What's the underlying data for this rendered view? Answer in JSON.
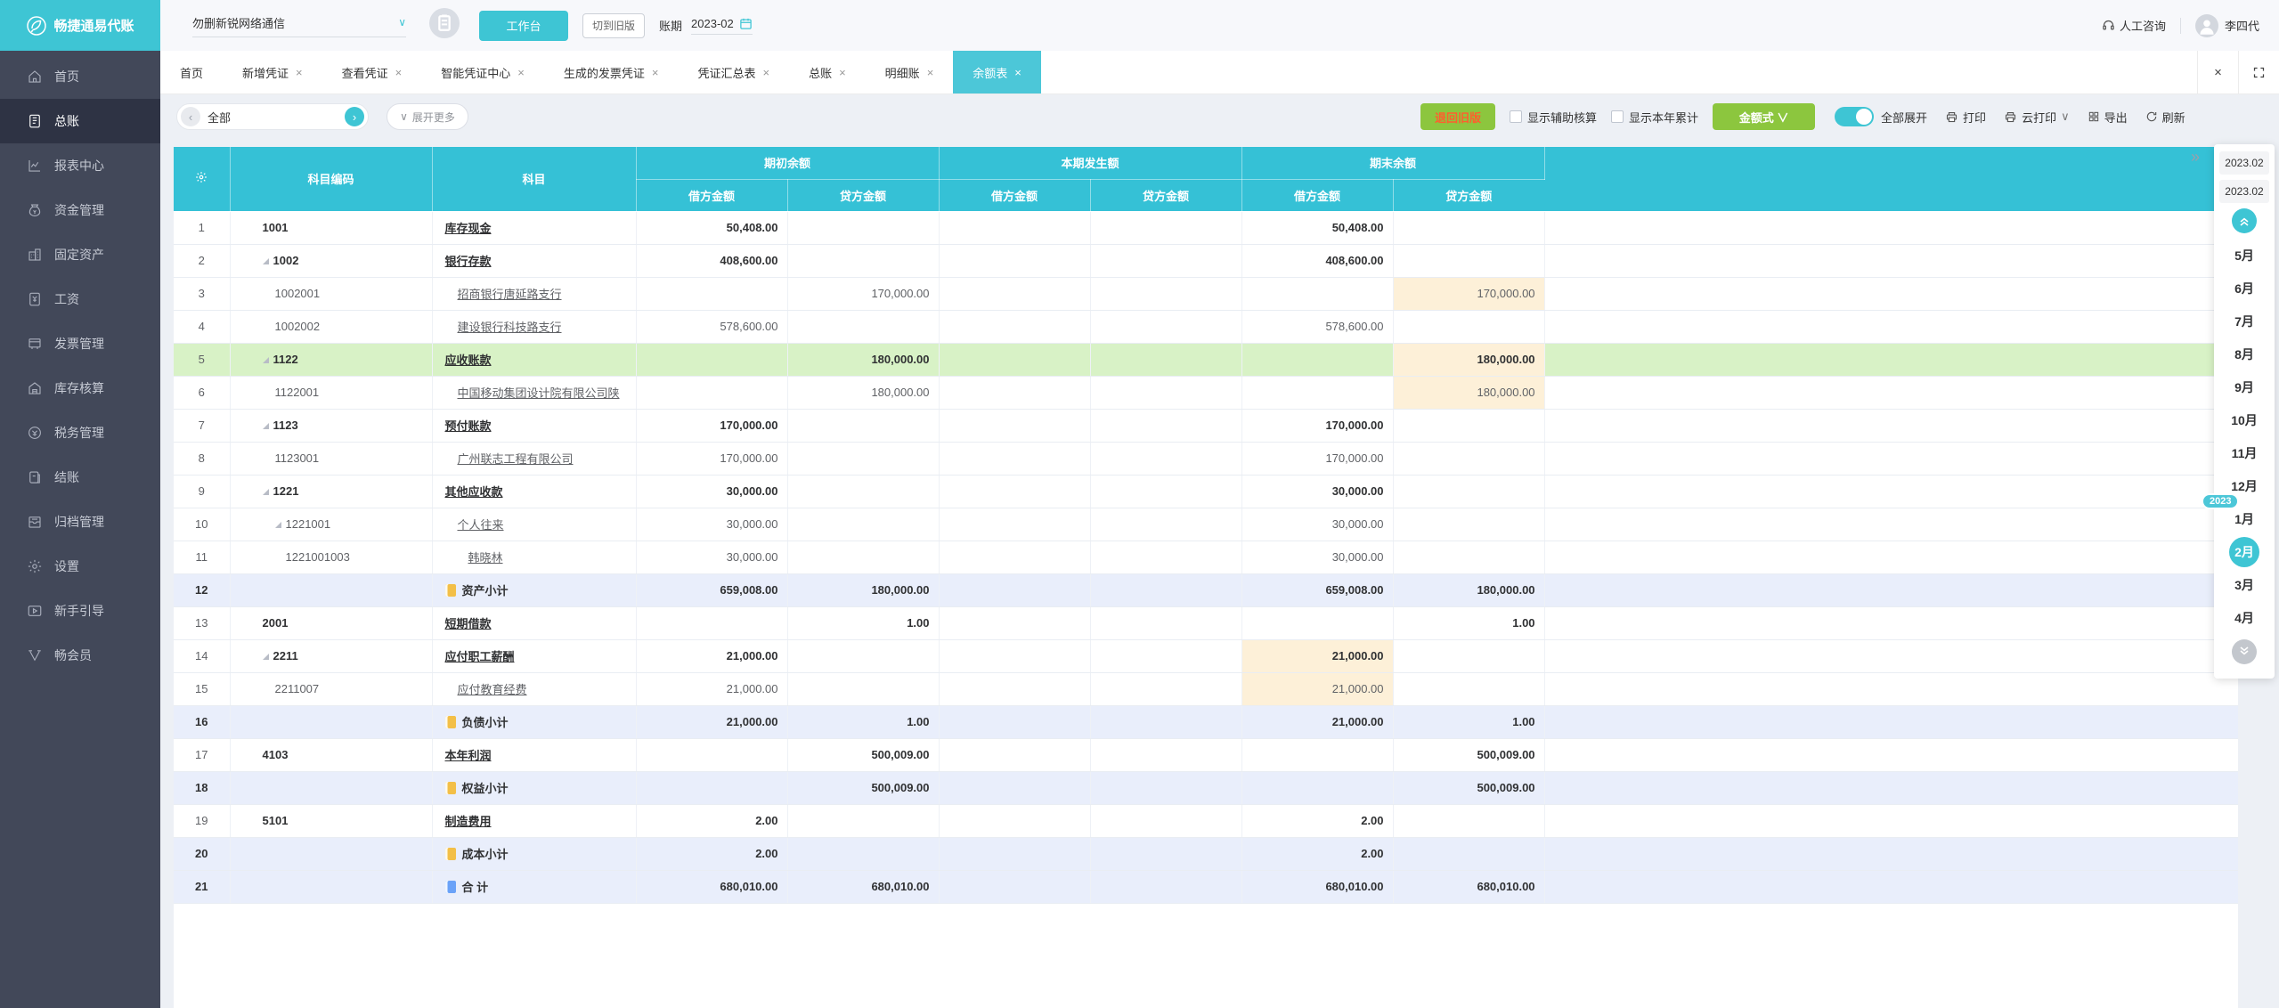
{
  "accent_color": "#3ec5d4",
  "topbar": {
    "logo_text": "畅捷通易代账",
    "company": "勿删新锐网络通信",
    "workbench_btn": "工作台",
    "switch_old_btn": "切到旧版",
    "period_label": "账期",
    "period_value": "2023-02",
    "support_label": "人工咨询",
    "user_name": "李四代"
  },
  "sidebar": {
    "items": [
      {
        "label": "首页",
        "icon": "home-icon",
        "active": false
      },
      {
        "label": "总账",
        "icon": "ledger-icon",
        "active": true
      },
      {
        "label": "报表中心",
        "icon": "report-icon",
        "active": false
      },
      {
        "label": "资金管理",
        "icon": "funds-icon",
        "active": false
      },
      {
        "label": "固定资产",
        "icon": "asset-icon",
        "active": false
      },
      {
        "label": "工资",
        "icon": "salary-icon",
        "active": false
      },
      {
        "label": "发票管理",
        "icon": "invoice-icon",
        "active": false
      },
      {
        "label": "库存核算",
        "icon": "inventory-icon",
        "active": false
      },
      {
        "label": "税务管理",
        "icon": "tax-icon",
        "active": false
      },
      {
        "label": "结账",
        "icon": "closing-icon",
        "active": false
      },
      {
        "label": "归档管理",
        "icon": "archive-icon",
        "active": false
      },
      {
        "label": "设置",
        "icon": "settings-icon",
        "active": false
      },
      {
        "label": "新手引导",
        "icon": "guide-icon",
        "active": false
      },
      {
        "label": "畅会员",
        "icon": "member-icon",
        "active": false
      }
    ]
  },
  "tabs": {
    "items": [
      {
        "label": "首页",
        "closable": false,
        "active": false
      },
      {
        "label": "新增凭证",
        "closable": true,
        "active": false
      },
      {
        "label": "查看凭证",
        "closable": true,
        "active": false
      },
      {
        "label": "智能凭证中心",
        "closable": true,
        "active": false
      },
      {
        "label": "生成的发票凭证",
        "closable": true,
        "active": false
      },
      {
        "label": "凭证汇总表",
        "closable": true,
        "active": false
      },
      {
        "label": "总账",
        "closable": true,
        "active": false
      },
      {
        "label": "明细账",
        "closable": true,
        "active": false
      },
      {
        "label": "余额表",
        "closable": true,
        "active": true
      }
    ],
    "close_all": "×"
  },
  "toolbar": {
    "filter_value": "全部",
    "expand_more": "展开更多",
    "back_old_btn": "退回旧版",
    "show_aux_label": "显示辅助核算",
    "show_ytd_label": "显示本年累计",
    "amount_style_btn": "金额式",
    "expand_all_label": "全部展开",
    "print_label": "打印",
    "cloud_print_label": "云打印",
    "export_label": "导出",
    "refresh_label": "刷新"
  },
  "table": {
    "headers": {
      "code": "科目编码",
      "subject": "科目",
      "group_opening": "期初余额",
      "group_current": "本期发生额",
      "group_ending": "期末余额",
      "debit": "借方金额",
      "credit": "贷方金额"
    },
    "rows": [
      {
        "num": "1",
        "code": "1001",
        "name": "库存现金",
        "level": 1,
        "expandable": false,
        "bold": true,
        "row_type": "normal",
        "selected": false,
        "highlight": [],
        "cells": [
          "50,408.00",
          "",
          "",
          "",
          "50,408.00",
          ""
        ]
      },
      {
        "num": "2",
        "code": "1002",
        "name": "银行存款",
        "level": 1,
        "expandable": true,
        "bold": true,
        "row_type": "normal",
        "selected": false,
        "highlight": [],
        "cells": [
          "408,600.00",
          "",
          "",
          "",
          "408,600.00",
          ""
        ]
      },
      {
        "num": "3",
        "code": "1002001",
        "name": "招商银行唐延路支行",
        "level": 2,
        "expandable": false,
        "bold": false,
        "row_type": "normal",
        "selected": false,
        "highlight": [
          5
        ],
        "cells": [
          "",
          "170,000.00",
          "",
          "",
          "",
          "170,000.00"
        ]
      },
      {
        "num": "4",
        "code": "1002002",
        "name": "建设银行科技路支行",
        "level": 2,
        "expandable": false,
        "bold": false,
        "row_type": "normal",
        "selected": false,
        "highlight": [],
        "cells": [
          "578,600.00",
          "",
          "",
          "",
          "578,600.00",
          ""
        ]
      },
      {
        "num": "5",
        "code": "1122",
        "name": "应收账款",
        "level": 1,
        "expandable": true,
        "bold": true,
        "row_type": "normal",
        "selected": true,
        "highlight": [
          5
        ],
        "cells": [
          "",
          "180,000.00",
          "",
          "",
          "",
          "180,000.00"
        ]
      },
      {
        "num": "6",
        "code": "1122001",
        "name": "中国移动集团设计院有限公司陕",
        "level": 2,
        "expandable": false,
        "bold": false,
        "row_type": "normal",
        "selected": false,
        "highlight": [
          5
        ],
        "cells": [
          "",
          "180,000.00",
          "",
          "",
          "",
          "180,000.00"
        ]
      },
      {
        "num": "7",
        "code": "1123",
        "name": "预付账款",
        "level": 1,
        "expandable": true,
        "bold": true,
        "row_type": "normal",
        "selected": false,
        "highlight": [],
        "cells": [
          "170,000.00",
          "",
          "",
          "",
          "170,000.00",
          ""
        ]
      },
      {
        "num": "8",
        "code": "1123001",
        "name": "广州联志工程有限公司",
        "level": 2,
        "expandable": false,
        "bold": false,
        "row_type": "normal",
        "selected": false,
        "highlight": [],
        "cells": [
          "170,000.00",
          "",
          "",
          "",
          "170,000.00",
          ""
        ]
      },
      {
        "num": "9",
        "code": "1221",
        "name": "其他应收款",
        "level": 1,
        "expandable": true,
        "bold": true,
        "row_type": "normal",
        "selected": false,
        "highlight": [],
        "cells": [
          "30,000.00",
          "",
          "",
          "",
          "30,000.00",
          ""
        ]
      },
      {
        "num": "10",
        "code": "1221001",
        "name": "个人往来",
        "level": 2,
        "expandable": true,
        "bold": false,
        "row_type": "normal",
        "selected": false,
        "highlight": [],
        "cells": [
          "30,000.00",
          "",
          "",
          "",
          "30,000.00",
          ""
        ]
      },
      {
        "num": "11",
        "code": "1221001003",
        "name": "韩晓林",
        "level": 3,
        "expandable": false,
        "bold": false,
        "row_type": "normal",
        "selected": false,
        "highlight": [],
        "cells": [
          "30,000.00",
          "",
          "",
          "",
          "30,000.00",
          ""
        ]
      },
      {
        "num": "12",
        "code": "",
        "name": "资产小计",
        "level": 1,
        "expandable": false,
        "bold": true,
        "row_type": "subtotal",
        "selected": false,
        "highlight": [],
        "cells": [
          "659,008.00",
          "180,000.00",
          "",
          "",
          "659,008.00",
          "180,000.00"
        ]
      },
      {
        "num": "13",
        "code": "2001",
        "name": "短期借款",
        "level": 1,
        "expandable": false,
        "bold": true,
        "row_type": "normal",
        "selected": false,
        "highlight": [],
        "cells": [
          "",
          "1.00",
          "",
          "",
          "",
          "1.00"
        ]
      },
      {
        "num": "14",
        "code": "2211",
        "name": "应付职工薪酬",
        "level": 1,
        "expandable": true,
        "bold": true,
        "row_type": "normal",
        "selected": false,
        "highlight": [
          4
        ],
        "cells": [
          "21,000.00",
          "",
          "",
          "",
          "21,000.00",
          ""
        ]
      },
      {
        "num": "15",
        "code": "2211007",
        "name": "应付教育经费",
        "level": 2,
        "expandable": false,
        "bold": false,
        "row_type": "normal",
        "selected": false,
        "highlight": [
          4
        ],
        "cells": [
          "21,000.00",
          "",
          "",
          "",
          "21,000.00",
          ""
        ]
      },
      {
        "num": "16",
        "code": "",
        "name": "负债小计",
        "level": 1,
        "expandable": false,
        "bold": true,
        "row_type": "subtotal",
        "selected": false,
        "highlight": [],
        "cells": [
          "21,000.00",
          "1.00",
          "",
          "",
          "21,000.00",
          "1.00"
        ]
      },
      {
        "num": "17",
        "code": "4103",
        "name": "本年利润",
        "level": 1,
        "expandable": false,
        "bold": true,
        "row_type": "normal",
        "selected": false,
        "highlight": [],
        "cells": [
          "",
          "500,009.00",
          "",
          "",
          "",
          "500,009.00"
        ]
      },
      {
        "num": "18",
        "code": "",
        "name": "权益小计",
        "level": 1,
        "expandable": false,
        "bold": true,
        "row_type": "subtotal",
        "selected": false,
        "highlight": [],
        "cells": [
          "",
          "500,009.00",
          "",
          "",
          "",
          "500,009.00"
        ]
      },
      {
        "num": "19",
        "code": "5101",
        "name": "制造费用",
        "level": 1,
        "expandable": false,
        "bold": true,
        "row_type": "normal",
        "selected": false,
        "highlight": [],
        "cells": [
          "2.00",
          "",
          "",
          "",
          "2.00",
          ""
        ]
      },
      {
        "num": "20",
        "code": "",
        "name": "成本小计",
        "level": 1,
        "expandable": false,
        "bold": true,
        "row_type": "subtotal",
        "selected": false,
        "highlight": [],
        "cells": [
          "2.00",
          "",
          "",
          "",
          "2.00",
          ""
        ]
      },
      {
        "num": "21",
        "code": "",
        "name": "合 计",
        "level": 1,
        "expandable": false,
        "bold": true,
        "row_type": "total",
        "selected": false,
        "highlight": [],
        "cells": [
          "680,010.00",
          "680,010.00",
          "",
          "",
          "680,010.00",
          "680,010.00"
        ]
      }
    ]
  },
  "month_panel": {
    "collapse_glyph": "»",
    "date_chips": [
      "2023.02",
      "2023.02"
    ],
    "year_badge": "2023",
    "months": [
      {
        "label": "5月",
        "active": false
      },
      {
        "label": "6月",
        "active": false
      },
      {
        "label": "7月",
        "active": false
      },
      {
        "label": "8月",
        "active": false
      },
      {
        "label": "9月",
        "active": false
      },
      {
        "label": "10月",
        "active": false
      },
      {
        "label": "11月",
        "active": false
      },
      {
        "label": "12月",
        "active": false
      },
      {
        "label": "1月",
        "active": false,
        "year_badge_before": true
      },
      {
        "label": "2月",
        "active": true
      },
      {
        "label": "3月",
        "active": false
      },
      {
        "label": "4月",
        "active": false
      }
    ]
  }
}
